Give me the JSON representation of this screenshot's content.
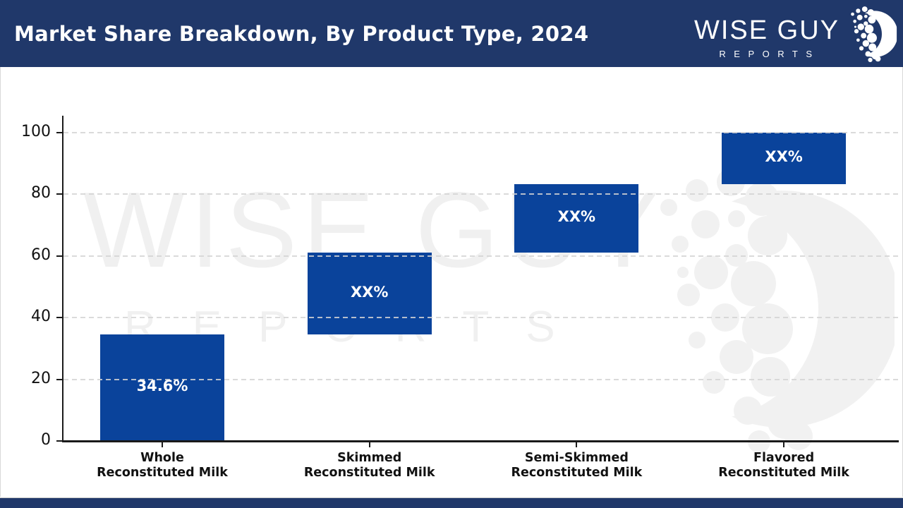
{
  "header": {
    "title": "Market Share Breakdown, By Product Type, 2024",
    "background": "#20386a"
  },
  "brand": {
    "line1": "WISE GUY",
    "line2": "REPORTS"
  },
  "watermark": {
    "line1": "WISE GUY",
    "line2": "REPORTS"
  },
  "footer": {
    "background": "#20386a"
  },
  "colors": {
    "header_navy": "#20386a",
    "bar_blue": "#0a439b",
    "gridline": "#d4d4d4",
    "axis": "#1a1a1a",
    "watermark_gray": "#f0f0f0"
  },
  "chart_data": {
    "type": "bar",
    "subtype": "waterfall-floating-bars",
    "title": "Market Share Breakdown, By Product Type, 2024",
    "xlabel": "",
    "ylabel": "",
    "ylim": [
      0,
      105
    ],
    "yticks": [
      0,
      20,
      40,
      60,
      80,
      100
    ],
    "grid": "horizontal-dashed",
    "legend": "none",
    "bar_color": "#0a439b",
    "categories": [
      {
        "line1": "Whole",
        "line2": "Reconstituted Milk"
      },
      {
        "line1": "Skimmed",
        "line2": "Reconstituted Milk"
      },
      {
        "line1": "Semi-Skimmed",
        "line2": "Reconstituted Milk"
      },
      {
        "line1": "Flavored",
        "line2": "Reconstituted Milk"
      }
    ],
    "bars": [
      {
        "start": 0,
        "end": 34.6,
        "value": 34.6,
        "label": "34.6%"
      },
      {
        "start": 34.6,
        "end": 61.2,
        "value": 26.6,
        "label": "XX%"
      },
      {
        "start": 61.2,
        "end": 83.3,
        "value": 22.1,
        "label": "XX%"
      },
      {
        "start": 83.3,
        "end": 100,
        "value": 16.7,
        "label": "XX%"
      }
    ]
  }
}
